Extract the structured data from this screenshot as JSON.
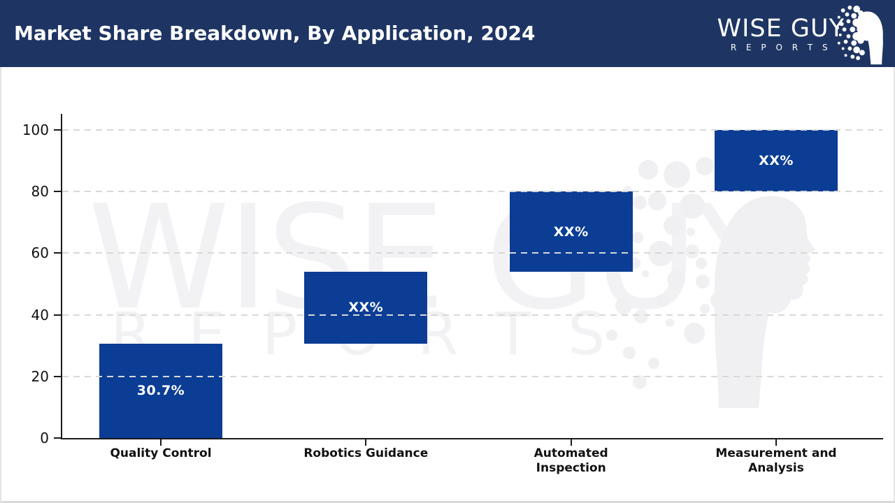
{
  "header": {
    "title": "Market Share Breakdown, By Application, 2024",
    "logo": {
      "name": "WISE GUY",
      "sub": "R E P O R T S"
    }
  },
  "watermark": {
    "name": "WISE GUY",
    "sub": "R E P O R T S"
  },
  "chart_data": {
    "type": "bar",
    "variant": "floating-waterfall",
    "title": "Market Share Breakdown, By Application, 2024",
    "categories": [
      "Quality Control",
      "Robotics Guidance",
      "Automated Inspection",
      "Measurement and Analysis"
    ],
    "category_lines": [
      [
        "Quality Control"
      ],
      [
        "Robotics Guidance"
      ],
      [
        "Automated",
        "Inspection"
      ],
      [
        "Measurement and",
        "Analysis"
      ]
    ],
    "segments": [
      {
        "category": "Quality Control",
        "start": 0,
        "end": 30.7,
        "value": 30.7,
        "label": "30.7%"
      },
      {
        "category": "Robotics Guidance",
        "start": 30.7,
        "end": 54,
        "value": 23.3,
        "label": "XX%"
      },
      {
        "category": "Automated Inspection",
        "start": 54,
        "end": 80,
        "value": 26,
        "label": "XX%"
      },
      {
        "category": "Measurement and Analysis",
        "start": 80,
        "end": 100,
        "value": 20,
        "label": "XX%"
      }
    ],
    "yticks": [
      0,
      20,
      40,
      60,
      80,
      100
    ],
    "ylim": [
      0,
      105
    ],
    "xlabel": "",
    "ylabel": "",
    "grid": "horizontal-dashed",
    "legend": "none",
    "bar_color": "#0c3d94",
    "bar_label_color": "#ffffff"
  },
  "colors": {
    "header_bg": "#1e3563",
    "bar": "#0c3d94",
    "grid": "#d8d8d8",
    "axis": "#1a1a1a",
    "tick_text": "#111111",
    "watermark": "#f2f2f4",
    "title_text": "#ffffff"
  }
}
